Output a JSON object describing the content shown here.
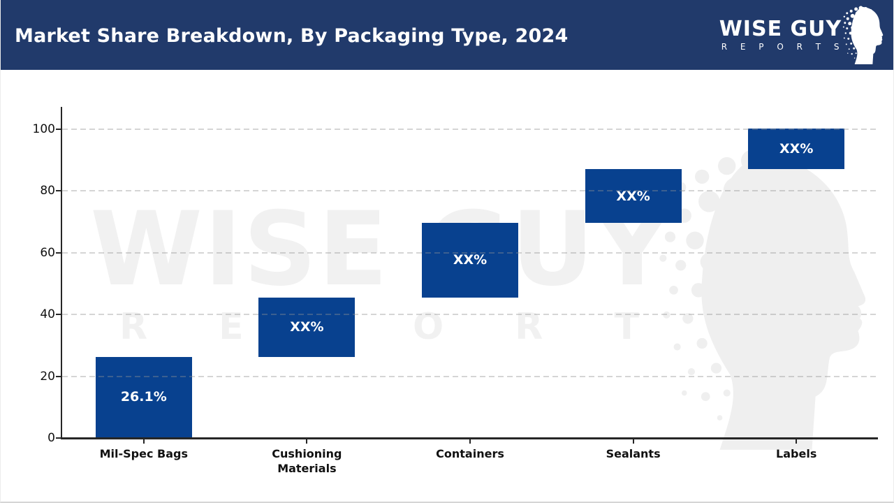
{
  "header": {
    "title": "Market Share Breakdown, By Packaging Type, 2024",
    "background_color": "#213a6b",
    "logo": {
      "line1": "WISE GUY",
      "line2": "R E P O R T S"
    }
  },
  "watermark": {
    "line1": "WISE GUY",
    "line2": "R E P O R T S"
  },
  "chart_data": {
    "type": "bar",
    "variant": "waterfall",
    "title": "Market Share Breakdown, By Packaging Type, 2024",
    "categories": [
      "Mil-Spec Bags",
      "Cushioning Materials",
      "Containers",
      "Sealants",
      "Labels"
    ],
    "segments": [
      {
        "category": "Mil-Spec Bags",
        "start": 0,
        "end": 26.1,
        "label": "26.1%"
      },
      {
        "category": "Cushioning Materials",
        "start": 26.1,
        "end": 45.2,
        "label": "XX%"
      },
      {
        "category": "Containers",
        "start": 45.2,
        "end": 69.5,
        "label": "XX%"
      },
      {
        "category": "Sealants",
        "start": 69.5,
        "end": 86.8,
        "label": "XX%"
      },
      {
        "category": "Labels",
        "start": 86.8,
        "end": 100,
        "label": "XX%"
      }
    ],
    "yticks": [
      0,
      20,
      40,
      60,
      80,
      100
    ],
    "ytick_labels": [
      "0",
      "20",
      "40",
      "60",
      "80",
      "100"
    ],
    "ylim": [
      0,
      107
    ],
    "xlabel": "",
    "ylabel": "",
    "bar_color": "#08418f",
    "axis_color": "#262626",
    "grid": true,
    "grid_style": "dashed",
    "legend": "none"
  }
}
